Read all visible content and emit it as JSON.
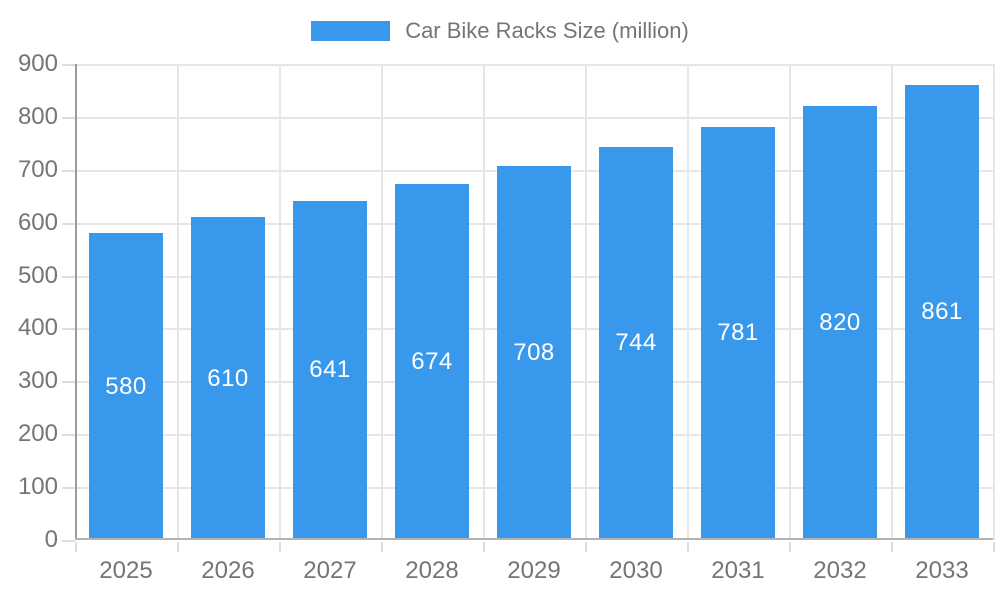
{
  "legend": {
    "label": "Car Bike Racks Size (million)"
  },
  "chart_data": {
    "type": "bar",
    "title": "",
    "xlabel": "",
    "ylabel": "",
    "categories": [
      "2025",
      "2026",
      "2027",
      "2028",
      "2029",
      "2030",
      "2031",
      "2032",
      "2033"
    ],
    "values": [
      580,
      610,
      641,
      674,
      708,
      744,
      781,
      820,
      861
    ],
    "series": [
      {
        "name": "Car Bike Racks Size (million)",
        "values": [
          580,
          610,
          641,
          674,
          708,
          744,
          781,
          820,
          861
        ]
      }
    ],
    "value_labels_shown": true,
    "value_label_position": "center-of-bar",
    "ylim": [
      0,
      900
    ],
    "yticks": [
      0,
      100,
      200,
      300,
      400,
      500,
      600,
      700,
      800,
      900
    ],
    "grid": true,
    "legend_position": "top-center",
    "colors": {
      "bar": "#3899ec",
      "value_label": "#ffffff",
      "axis_text": "#757575",
      "grid": "#e6e6e6",
      "tick": "#dddddd",
      "x_axis_line": "#b3b3b3",
      "y_axis_line": "#9b9b9b"
    }
  }
}
